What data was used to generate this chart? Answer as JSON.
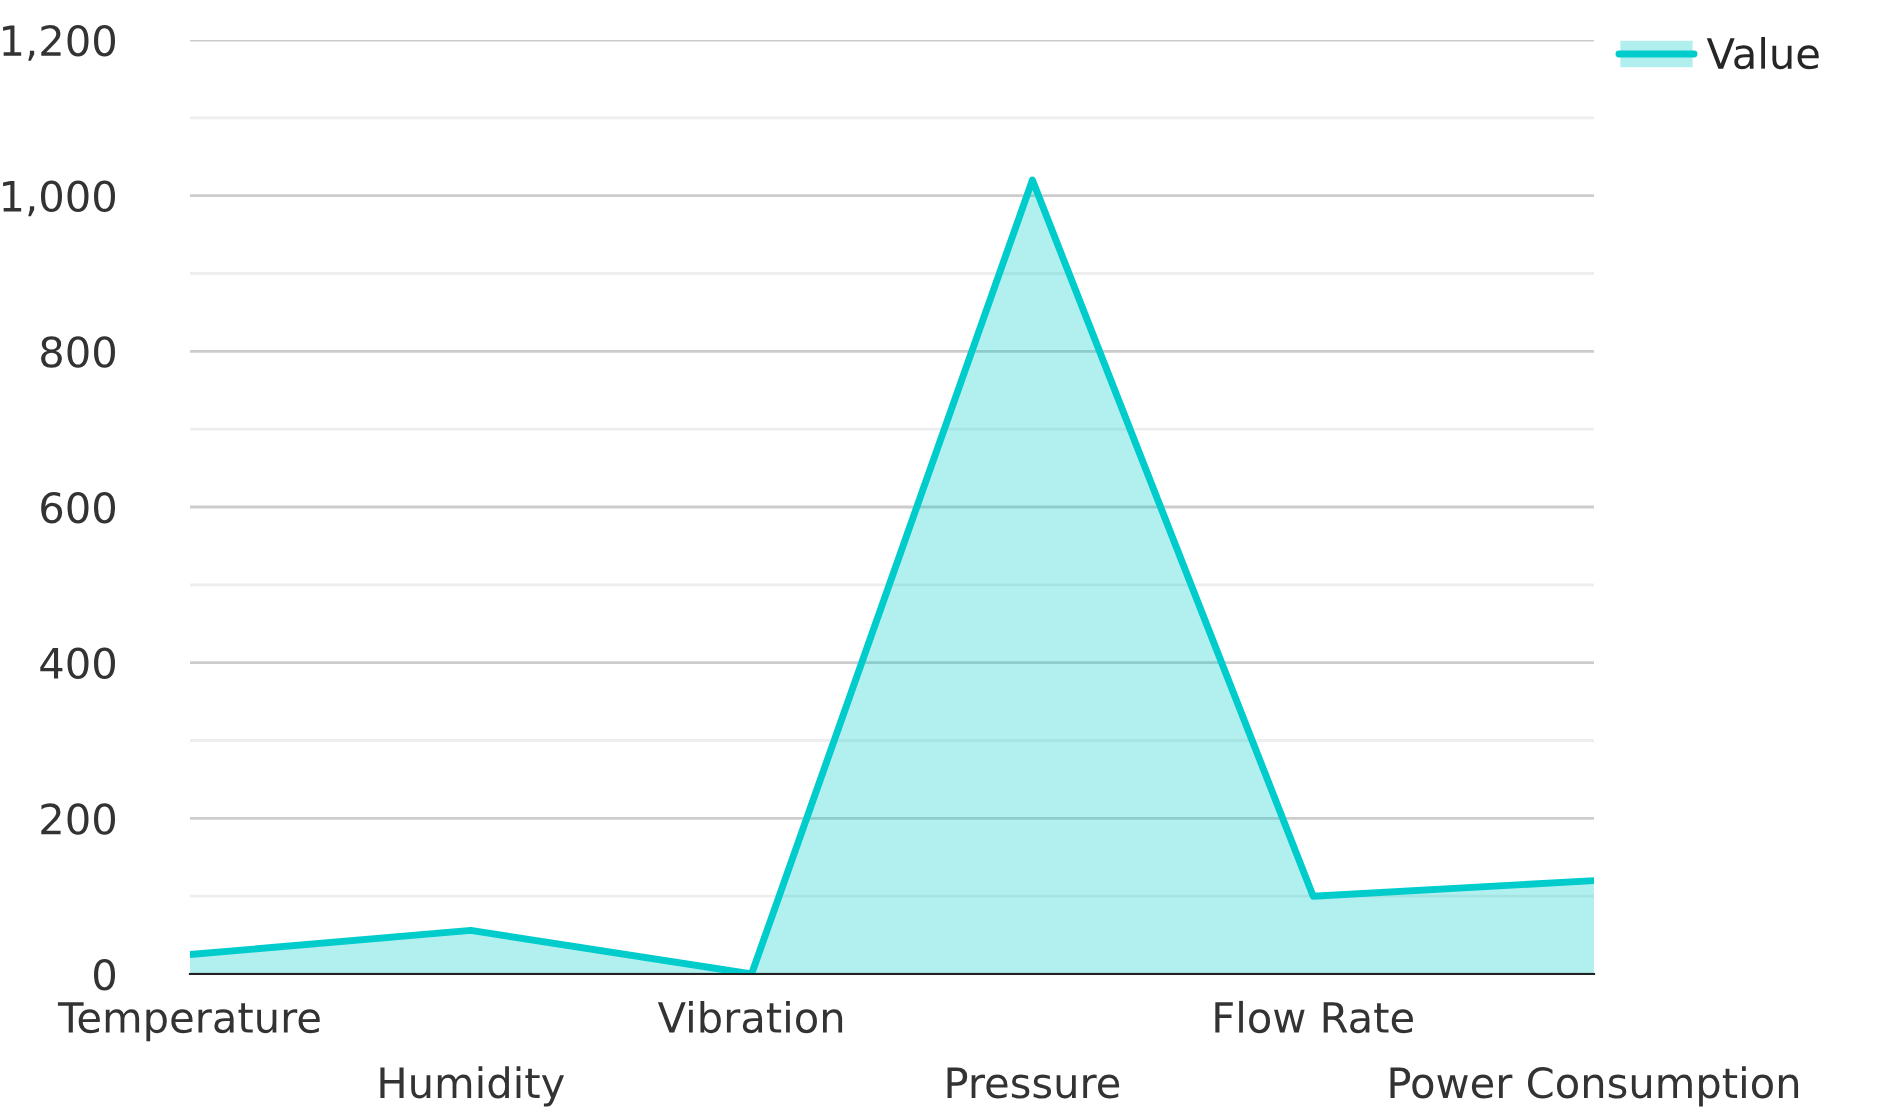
{
  "chart_data": {
    "type": "area",
    "categories": [
      "Temperature",
      "Humidity",
      "Vibration",
      "Pressure",
      "Flow Rate",
      "Power Consumption"
    ],
    "series": [
      {
        "name": "Value",
        "color": "#00cccc",
        "values": [
          25,
          56,
          0,
          1020,
          100,
          120
        ]
      }
    ],
    "ylim": [
      0,
      1200
    ],
    "yticks": [
      0,
      200,
      400,
      600,
      800,
      {
        "value": 1000,
        "label": "1,000"
      },
      {
        "value": 1200,
        "label": "1,200"
      }
    ],
    "grid": "y",
    "legend": "top right"
  }
}
